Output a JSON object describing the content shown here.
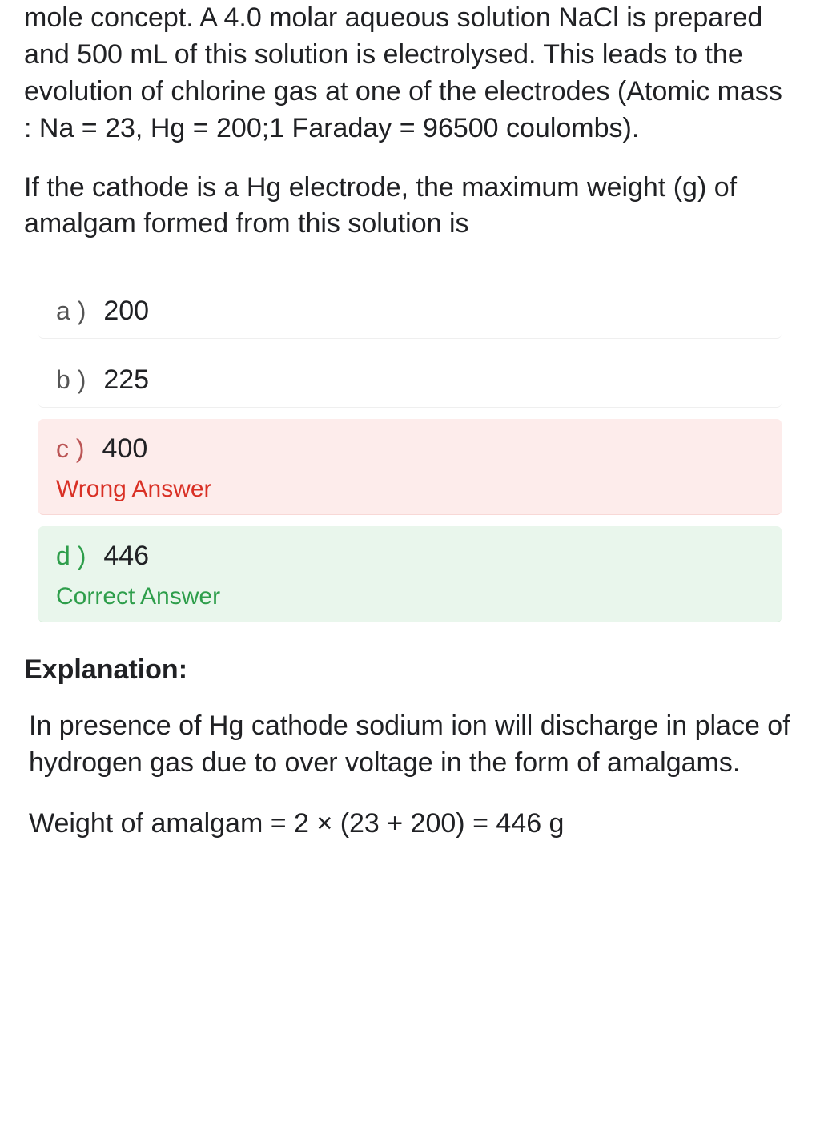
{
  "question": {
    "paragraph1": "mole concept. A 4.0 molar aqueous solution NaCl is prepared and 500 mL of this solution is electrolysed. This leads to the evolution of chlorine gas at one of the electrodes (Atomic mass : Na = 23, Hg = 200;1 Faraday = 96500 coulombs).",
    "paragraph2": "If the cathode is a Hg electrode, the maximum weight (g) of amalgam formed from this solution is"
  },
  "options": [
    {
      "letter": "a )",
      "value": "200",
      "state": "plain"
    },
    {
      "letter": "b )",
      "value": "225",
      "state": "plain"
    },
    {
      "letter": "c )",
      "value": "400",
      "state": "wrong",
      "feedback": "Wrong Answer"
    },
    {
      "letter": "d )",
      "value": "446",
      "state": "correct",
      "feedback": "Correct Answer"
    }
  ],
  "explanation": {
    "heading": "Explanation:",
    "body": "In presence of Hg cathode sodium ion will discharge in place of hydrogen gas due to over voltage in the form of amalgams.",
    "calc": "Weight of amalgam = 2 × (23 + 200) = 446 g"
  },
  "colors": {
    "wrong_bg": "#fdeceb",
    "wrong_text": "#d93025",
    "correct_bg": "#e9f6ec",
    "correct_text": "#2e9e4b",
    "page_bg": "#ffffff",
    "text": "#202124"
  }
}
